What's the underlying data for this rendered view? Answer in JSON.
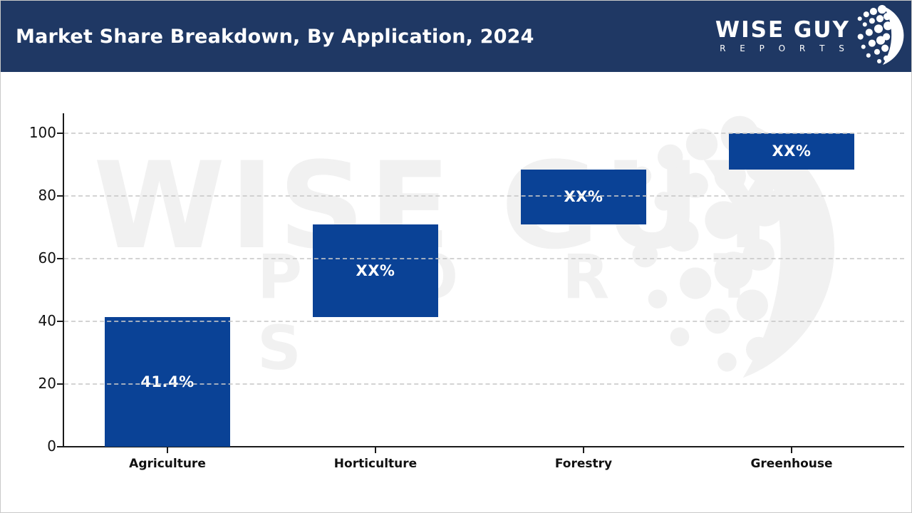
{
  "header": {
    "title": "Market Share Breakdown, By Application, 2024",
    "bg_color": "#1F3864",
    "logo": {
      "line1": "WISE GUY",
      "line2": "R E P O R T S"
    }
  },
  "watermark": {
    "line1": "WISE GUY",
    "line2": "P O R T S"
  },
  "chart_data": {
    "type": "bar",
    "subtype": "floating-waterfall",
    "title": "Market Share Breakdown, By Application, 2024",
    "categories": [
      "Agriculture",
      "Horticulture",
      "Forestry",
      "Greenhouse"
    ],
    "segments": [
      {
        "category": "Agriculture",
        "start": 0,
        "end": 41.4,
        "label": "41.4%"
      },
      {
        "category": "Horticulture",
        "start": 41.4,
        "end": 71.0,
        "label": "XX%"
      },
      {
        "category": "Forestry",
        "start": 71.0,
        "end": 88.5,
        "label": "XX%"
      },
      {
        "category": "Greenhouse",
        "start": 88.5,
        "end": 100,
        "label": "XX%"
      }
    ],
    "ytick_labels": [
      "0",
      "20",
      "40",
      "60",
      "80",
      "100"
    ],
    "yticks": [
      0,
      20,
      40,
      60,
      80,
      100
    ],
    "ylim": [
      0,
      106
    ],
    "xlabel": "",
    "ylabel": "",
    "bar_color": "#0A4296",
    "grid": "horizontal-dashed",
    "legend": "none"
  }
}
